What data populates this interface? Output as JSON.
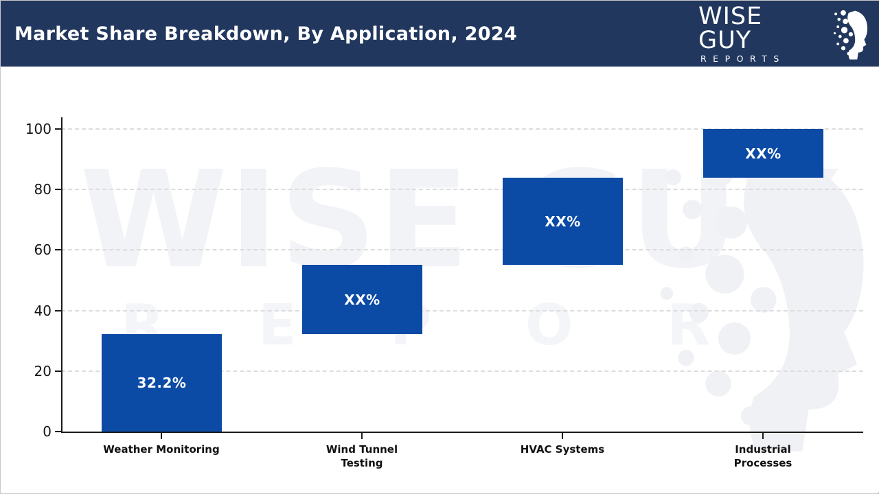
{
  "header": {
    "title": "Market Share Breakdown, By Application, 2024",
    "brand_line1": "WISE GUY",
    "brand_line2": "REPORTS",
    "bg_color": "#21375e"
  },
  "watermark": {
    "line1": "WISE GUY",
    "line2": "R E P O R T S"
  },
  "chart_data": {
    "type": "bar",
    "variant": "waterfall",
    "title": "Market Share Breakdown, By Application, 2024",
    "xlabel": "",
    "ylabel": "",
    "ylim": [
      0,
      104
    ],
    "yticks": [
      0,
      20,
      40,
      60,
      80,
      100
    ],
    "grid": "horizontal dashed",
    "legend": "none",
    "bar_color": "#0b4aa5",
    "bar_label_color": "#ffffff",
    "categories": [
      "Weather Monitoring",
      "Wind Tunnel Testing",
      "HVAC Systems",
      "Industrial Processes"
    ],
    "category_label_lines": [
      [
        "Weather Monitoring"
      ],
      [
        "Wind Tunnel",
        "Testing"
      ],
      [
        "HVAC Systems"
      ],
      [
        "Industrial",
        "Processes"
      ]
    ],
    "segments": [
      {
        "category": "Weather Monitoring",
        "start": 0,
        "end": 32.2,
        "label": "32.2%"
      },
      {
        "category": "Wind Tunnel Testing",
        "start": 32.2,
        "end": 55.2,
        "label": "XX%"
      },
      {
        "category": "HVAC Systems",
        "start": 55.2,
        "end": 84,
        "label": "XX%"
      },
      {
        "category": "Industrial Processes",
        "start": 84,
        "end": 100,
        "label": "XX%"
      }
    ]
  }
}
